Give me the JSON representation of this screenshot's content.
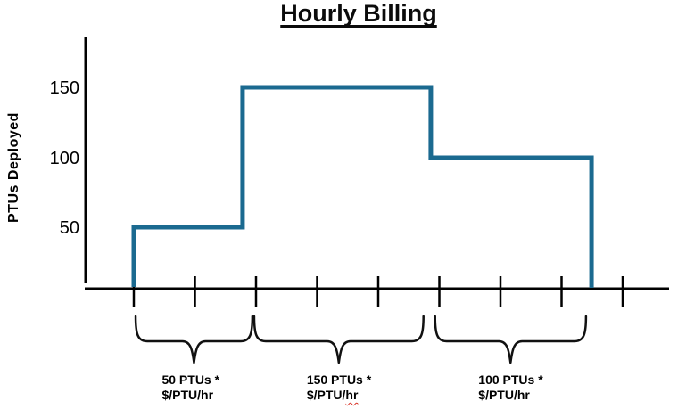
{
  "header": {
    "title": "Hourly Billing"
  },
  "colors": {
    "line": "#1B6A90",
    "axis": "#000000",
    "brace": "#111111",
    "squiggle": "#d93025"
  },
  "chart_data": {
    "type": "line",
    "line_style": "step",
    "title": "Hourly Billing",
    "xlabel": "",
    "ylabel": "PTUs Deployed",
    "yticks": [
      50,
      100,
      150
    ],
    "ylim": [
      0,
      175
    ],
    "x_axis": {
      "unlabeled_tick_count": 9,
      "unit": "hour"
    },
    "grid": false,
    "legend": false,
    "series": [
      {
        "name": "PTUs Deployed",
        "steps": [
          {
            "ptus": 50,
            "from_hour": 1.0,
            "to_hour": 2.78
          },
          {
            "ptus": 150,
            "from_hour": 2.78,
            "to_hour": 5.86
          },
          {
            "ptus": 100,
            "from_hour": 5.86,
            "to_hour": 8.49
          }
        ]
      }
    ],
    "annotations": [
      {
        "brace_from_hour": 1.03,
        "brace_to_hour": 2.94,
        "line1": "50 PTUs *",
        "line2": "$/PTU/hr"
      },
      {
        "brace_from_hour": 2.97,
        "brace_to_hour": 5.74,
        "line1": "150 PTUs *",
        "line2": "$/PTU/hr",
        "spellcheck_squiggle": "hr"
      },
      {
        "brace_from_hour": 5.93,
        "brace_to_hour": 8.4,
        "line1": "100 PTUs *",
        "line2": "$/PTU/hr"
      }
    ]
  }
}
